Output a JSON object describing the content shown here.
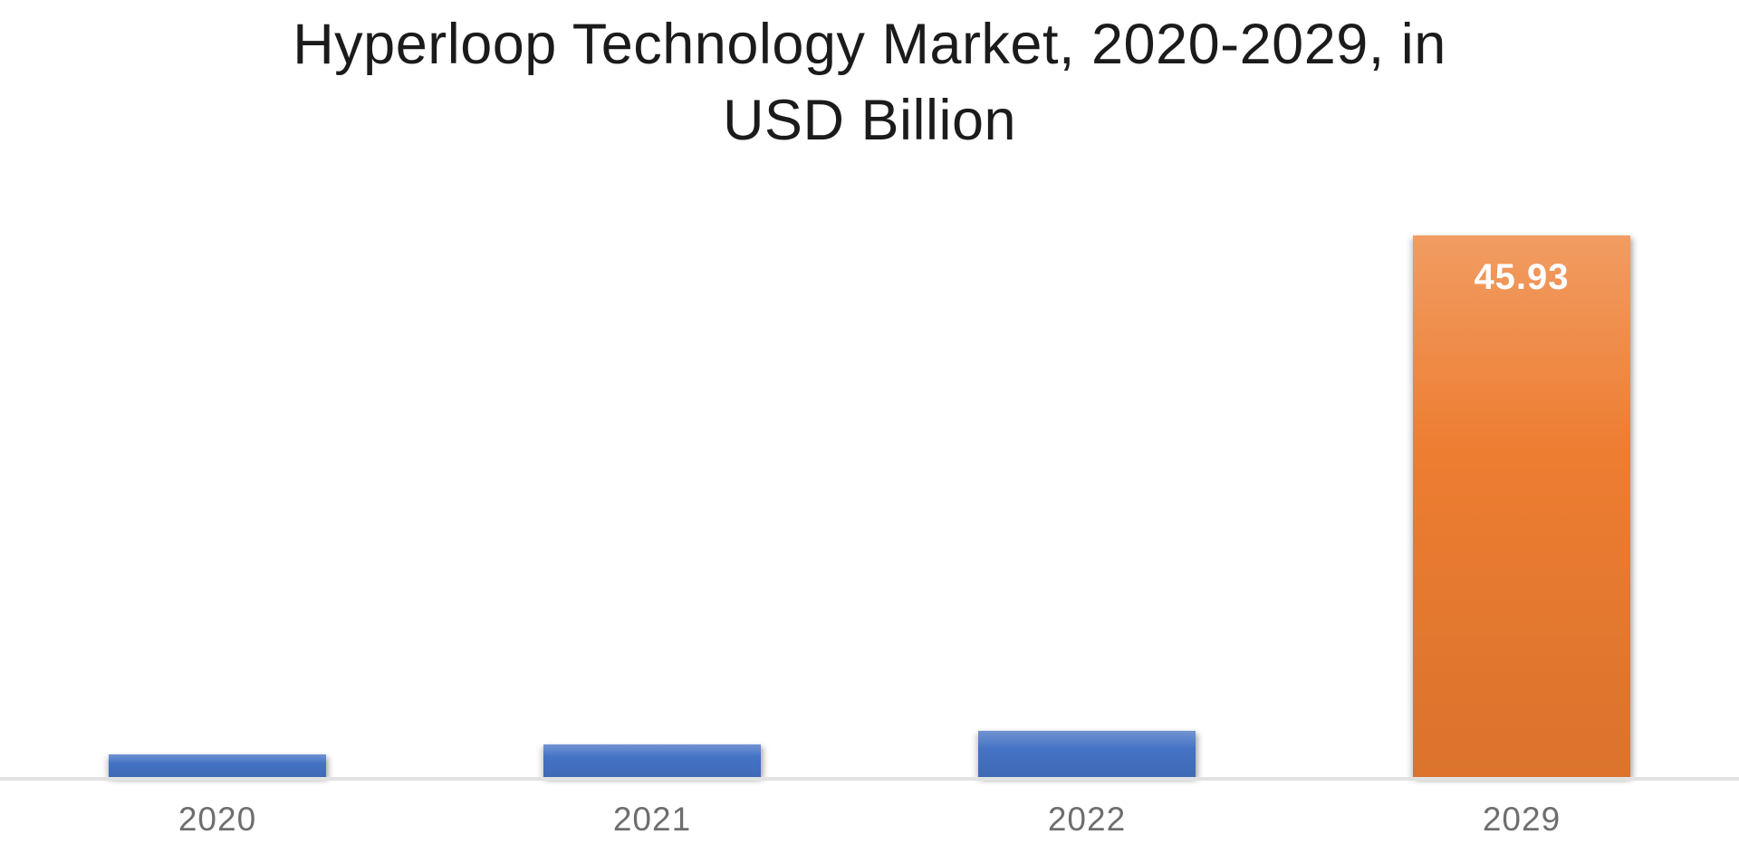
{
  "chart_data": {
    "type": "bar",
    "title": "Hyperloop Technology Market, 2020-2029, in USD Billion",
    "categories": [
      "2020",
      "2021",
      "2022",
      "2029"
    ],
    "values": [
      1.9,
      2.8,
      3.9,
      45.93
    ],
    "data_labels": [
      "",
      "",
      "",
      "45.93"
    ],
    "bar_colors": [
      "#4472C4",
      "#4472C4",
      "#4472C4",
      "#ED7D31"
    ],
    "xlabel": "",
    "ylabel": "",
    "ylim": [
      0,
      46
    ],
    "grid": false,
    "legend": false,
    "background_color": "#FFFFFF",
    "title_color": "#1B1B1B",
    "value_label_color": "#FFFFFF",
    "tick_label_color": "#6E6E6E",
    "axis_line_color": "#E2E2E2"
  }
}
